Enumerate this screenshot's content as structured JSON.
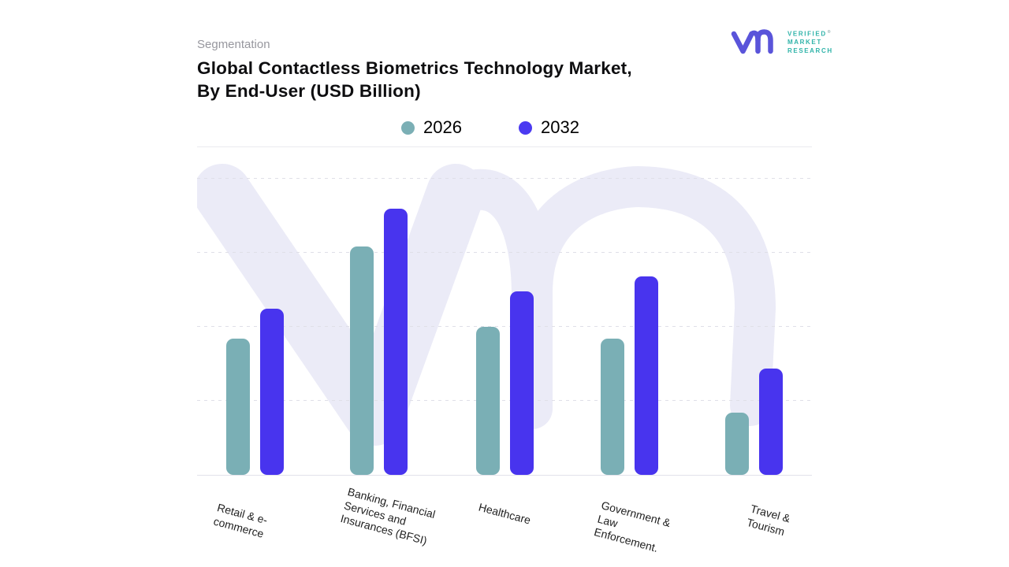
{
  "page": {
    "background": "#ffffff"
  },
  "brand": {
    "glyph": "vm-monogram",
    "glyph_color": "#5A54DA",
    "text_color": "#2FB3A9",
    "lines": [
      "VERIFIED",
      "MARKET",
      "RESEARCH"
    ],
    "registered": "®"
  },
  "header": {
    "eyebrow": "Segmentation",
    "title": "Global Contactless Biometrics Technology Market,\nBy End-User (USD Billion)"
  },
  "legend": {
    "items": [
      {
        "label": "2026",
        "color": "#7BAFB5"
      },
      {
        "label": "2032",
        "color": "#4B3AF1"
      }
    ]
  },
  "chart_data": {
    "type": "bar",
    "title": "Global Contactless Biometrics Technology Market, By End-User (USD Billion)",
    "categories": [
      "Retail & e-\ncommerce",
      "Banking, Financial\nServices and\nInsurances (BFSI)",
      "Healthcare",
      "Government &\nLaw\nEnforcement.",
      "Travel & Tourism"
    ],
    "series": [
      {
        "name": "2026",
        "color": "#7AAFB5",
        "values": [
          0.46,
          0.77,
          0.5,
          0.46,
          0.21
        ]
      },
      {
        "name": "2032",
        "color": "#4834EE",
        "values": [
          0.56,
          0.9,
          0.62,
          0.67,
          0.36
        ]
      }
    ],
    "value_axis": "none shown (values are relative bar heights as fraction of plot height)",
    "ylim": [
      0,
      1
    ],
    "grid": "horizontal dashed",
    "legend_position": "top-center",
    "bar_corner_radius_px": 9,
    "category_label_rotation_deg": 15
  },
  "watermark": {
    "name": "vmr-logo-watermark",
    "color": "#EBEBF7"
  }
}
